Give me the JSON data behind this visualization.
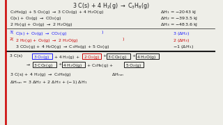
{
  "bg_color": "#eeeee8",
  "dark": "#1a1a1a",
  "red": "#cc0000",
  "blue": "#1a1aff",
  "fs_title": 5.8,
  "fs_body": 4.6,
  "fs_cancel": 4.4
}
